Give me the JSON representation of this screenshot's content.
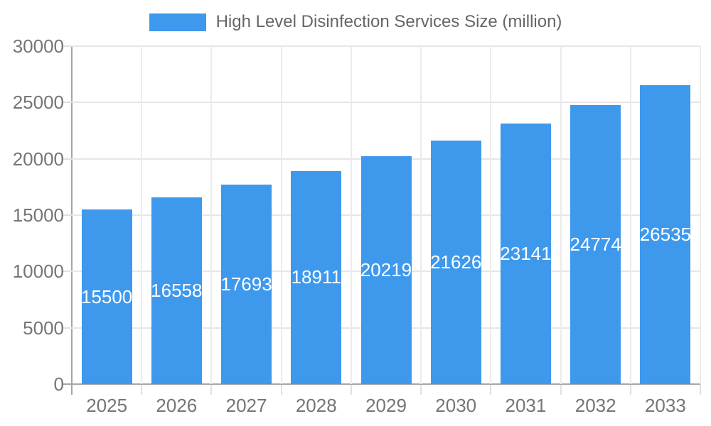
{
  "legend": {
    "label": "High Level Disinfection Services Size (million)"
  },
  "chart_data": {
    "type": "bar",
    "title": "High Level Disinfection Services Size (million)",
    "categories": [
      "2025",
      "2026",
      "2027",
      "2028",
      "2029",
      "2030",
      "2031",
      "2032",
      "2033"
    ],
    "values": [
      15500,
      16558,
      17693,
      18911,
      20219,
      21626,
      23141,
      24774,
      26535
    ],
    "xlabel": "",
    "ylabel": "",
    "ylim": [
      0,
      30000
    ],
    "y_ticks": [
      0,
      5000,
      10000,
      15000,
      20000,
      25000,
      30000
    ],
    "grid": "on",
    "legend_position": "top-center",
    "bar_label_color": "#ffffff",
    "colors": {
      "bar": "#3E99ED",
      "axis_line": "#a6a6a6",
      "gridline": "#e6e6e6",
      "tick": "#e0e0e0",
      "axis_text": "#757575",
      "legend_text": "#666666",
      "background": "#ffffff"
    }
  }
}
